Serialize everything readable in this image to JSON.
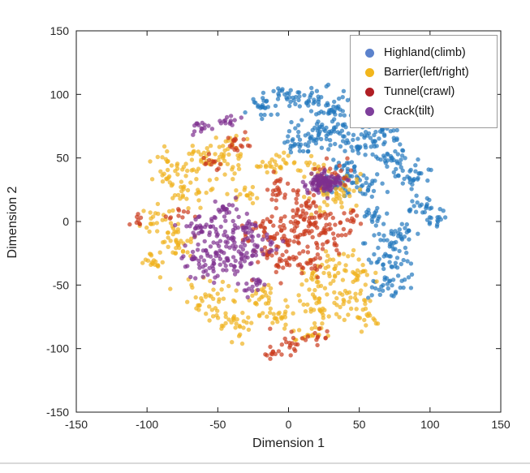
{
  "chart_data": {
    "type": "scatter",
    "title": "",
    "xlabel": "Dimension 1",
    "ylabel": "Dimension 2",
    "xlim": [
      -150,
      150
    ],
    "ylim": [
      -150,
      150
    ],
    "xticks": [
      -150,
      -100,
      -50,
      0,
      50,
      100,
      150
    ],
    "yticks": [
      -150,
      -100,
      -50,
      0,
      50,
      100,
      150
    ],
    "grid": false,
    "legend_position": "top-right-inside",
    "axis_color": "#1a1a1a",
    "tick_label_color": "#252525",
    "marker_opacity": 0.7,
    "marker_radius": 2.7,
    "seed": 7,
    "series": [
      {
        "name": "Highland(climb)",
        "color": "#2277BE",
        "legend_color": "#5B82CC",
        "clusters": [
          [
            8,
            97,
            10,
            5,
            50
          ],
          [
            -18,
            92,
            6,
            5,
            25
          ],
          [
            35,
            88,
            8,
            6,
            35
          ],
          [
            28,
            70,
            10,
            7,
            50
          ],
          [
            50,
            62,
            7,
            6,
            35
          ],
          [
            8,
            62,
            6,
            5,
            30
          ],
          [
            68,
            72,
            7,
            6,
            30
          ],
          [
            85,
            38,
            7,
            6,
            35
          ],
          [
            72,
            50,
            6,
            5,
            25
          ],
          [
            95,
            12,
            5,
            5,
            22
          ],
          [
            103,
            0,
            3,
            3,
            12
          ],
          [
            78,
            -8,
            7,
            7,
            35
          ],
          [
            72,
            -30,
            7,
            7,
            35
          ],
          [
            68,
            -52,
            7,
            5,
            30
          ],
          [
            52,
            30,
            6,
            5,
            25
          ],
          [
            40,
            42,
            5,
            4,
            20
          ],
          [
            60,
            5,
            5,
            5,
            18
          ],
          [
            35,
            30,
            6,
            5,
            30
          ]
        ]
      },
      {
        "name": "Barrier(left/right)",
        "color": "#EFB21E",
        "legend_color": "#F2B61C",
        "clusters": [
          [
            -85,
            42,
            7,
            6,
            30
          ],
          [
            -68,
            28,
            8,
            7,
            35
          ],
          [
            -90,
            2,
            7,
            7,
            30
          ],
          [
            -78,
            -18,
            7,
            6,
            28
          ],
          [
            -95,
            -30,
            5,
            5,
            18
          ],
          [
            -58,
            52,
            7,
            5,
            25
          ],
          [
            -40,
            48,
            6,
            5,
            22
          ],
          [
            -12,
            45,
            8,
            5,
            25
          ],
          [
            -55,
            -62,
            9,
            7,
            38
          ],
          [
            -38,
            -78,
            7,
            6,
            30
          ],
          [
            -18,
            -62,
            7,
            6,
            25
          ],
          [
            -5,
            -75,
            6,
            5,
            20
          ],
          [
            25,
            -68,
            9,
            7,
            35
          ],
          [
            45,
            -58,
            7,
            5,
            25
          ],
          [
            55,
            -75,
            5,
            4,
            16
          ],
          [
            12,
            -88,
            7,
            4,
            18
          ],
          [
            35,
            -35,
            8,
            7,
            32
          ],
          [
            52,
            -42,
            5,
            4,
            16
          ],
          [
            18,
            -48,
            7,
            5,
            22
          ],
          [
            30,
            18,
            9,
            5,
            28
          ],
          [
            42,
            28,
            5,
            5,
            18
          ],
          [
            -30,
            22,
            5,
            4,
            15
          ],
          [
            -45,
            62,
            4,
            4,
            12
          ],
          [
            15,
            42,
            6,
            4,
            16
          ]
        ]
      },
      {
        "name": "Tunnel(crawl)",
        "color": "#CB3A1C",
        "legend_color": "#B01E24",
        "clusters": [
          [
            5,
            -8,
            13,
            10,
            70
          ],
          [
            -8,
            -28,
            9,
            7,
            38
          ],
          [
            15,
            8,
            9,
            7,
            38
          ],
          [
            28,
            -12,
            7,
            7,
            30
          ],
          [
            -18,
            -8,
            7,
            5,
            22
          ],
          [
            -2,
            25,
            8,
            5,
            25
          ],
          [
            -38,
            62,
            5,
            4,
            18
          ],
          [
            -55,
            47,
            4,
            3,
            12
          ],
          [
            2,
            -95,
            7,
            4,
            18
          ],
          [
            -12,
            -103,
            4,
            3,
            10
          ],
          [
            22,
            -88,
            4,
            4,
            10
          ],
          [
            45,
            2,
            5,
            5,
            15
          ],
          [
            28,
            38,
            8,
            5,
            25
          ],
          [
            12,
            -35,
            7,
            5,
            20
          ],
          [
            -108,
            0,
            2.5,
            2.5,
            8
          ],
          [
            -75,
            8,
            4,
            3,
            10
          ]
        ]
      },
      {
        "name": "Crack(tilt)",
        "color": "#7E2F8E",
        "legend_color": "#7E3F9B",
        "clusters": [
          [
            27,
            32,
            6,
            4,
            80
          ],
          [
            20,
            28,
            4,
            3,
            30
          ],
          [
            -45,
            -15,
            9,
            9,
            55
          ],
          [
            -55,
            -35,
            7,
            7,
            38
          ],
          [
            -35,
            -30,
            7,
            6,
            32
          ],
          [
            -62,
            -5,
            6,
            5,
            22
          ],
          [
            -30,
            -5,
            5,
            5,
            20
          ],
          [
            -45,
            12,
            6,
            5,
            20
          ],
          [
            -25,
            -48,
            6,
            4,
            18
          ],
          [
            -62,
            74,
            4,
            3,
            14
          ],
          [
            -42,
            79,
            4,
            3,
            13
          ],
          [
            -15,
            -18,
            5,
            4,
            16
          ],
          [
            -68,
            -28,
            4,
            4,
            14
          ]
        ]
      }
    ]
  }
}
